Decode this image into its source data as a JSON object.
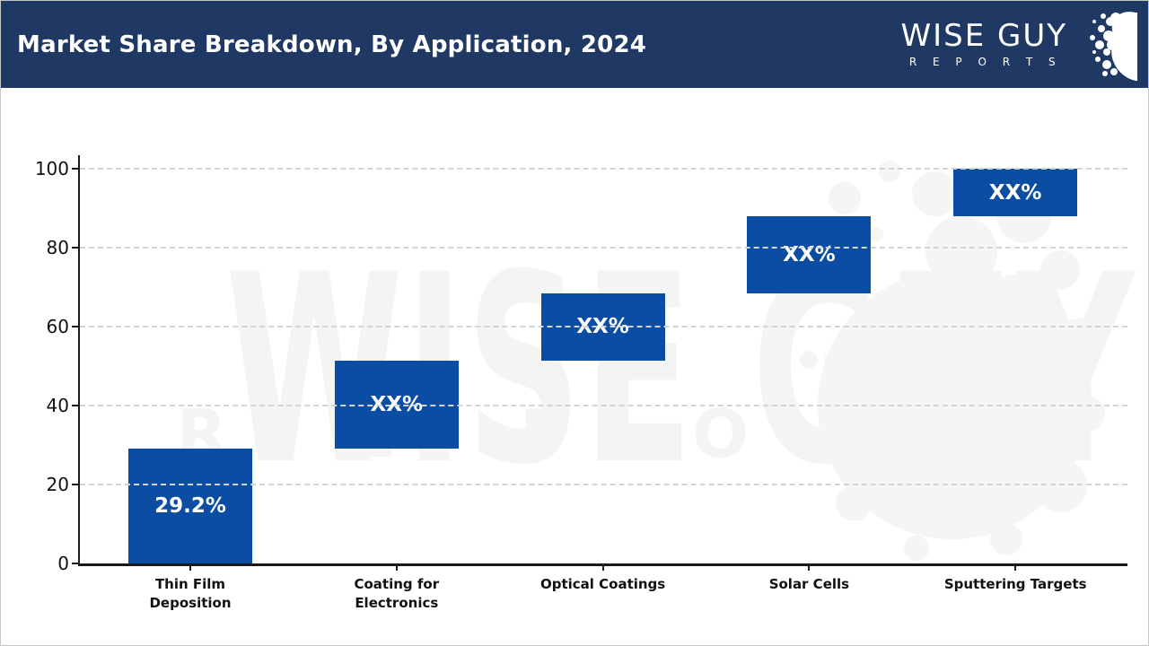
{
  "header": {
    "title": "Market Share Breakdown, By Application, 2024",
    "bg_color": "#203864",
    "logo": {
      "wordmark": "WISE GUY",
      "subtext": "R E P O R T S"
    }
  },
  "watermark": {
    "line1": "WISE GUY",
    "line2": "R E P O R T S"
  },
  "chart_data": {
    "type": "bar",
    "subtype": "waterfall",
    "title": "Market Share Breakdown, By Application, 2024",
    "categories": [
      "Thin Film Deposition",
      "Coating for Electronics",
      "Optical Coatings",
      "Solar Cells",
      "Sputtering Targets"
    ],
    "category_lines": [
      [
        "Thin Film",
        "Deposition"
      ],
      [
        "Coating for",
        "Electronics"
      ],
      [
        "Optical Coatings"
      ],
      [
        "Solar Cells"
      ],
      [
        "Sputtering Targets"
      ]
    ],
    "segments": [
      {
        "category": "Thin Film Deposition",
        "start": 0,
        "end": 29.2,
        "label": "29.2%"
      },
      {
        "category": "Coating for Electronics",
        "start": 29.2,
        "end": 51.3,
        "label": "XX%"
      },
      {
        "category": "Optical Coatings",
        "start": 51.3,
        "end": 68.5,
        "label": "XX%"
      },
      {
        "category": "Solar Cells",
        "start": 68.5,
        "end": 87.9,
        "label": "XX%"
      },
      {
        "category": "Sputtering Targets",
        "start": 87.9,
        "end": 100,
        "label": "XX%"
      }
    ],
    "y_ticks": [
      0,
      20,
      40,
      60,
      80,
      100
    ],
    "ylim": [
      0,
      103.5
    ],
    "grid": "horizontal-dashed",
    "legend": "none",
    "xlabel": "",
    "ylabel": "",
    "bar_color": "#0B4DA2",
    "bar_label_color": "#FFFFFF",
    "axis_color": "#1A1A1A",
    "gridline_color": "#D4D4D4"
  }
}
